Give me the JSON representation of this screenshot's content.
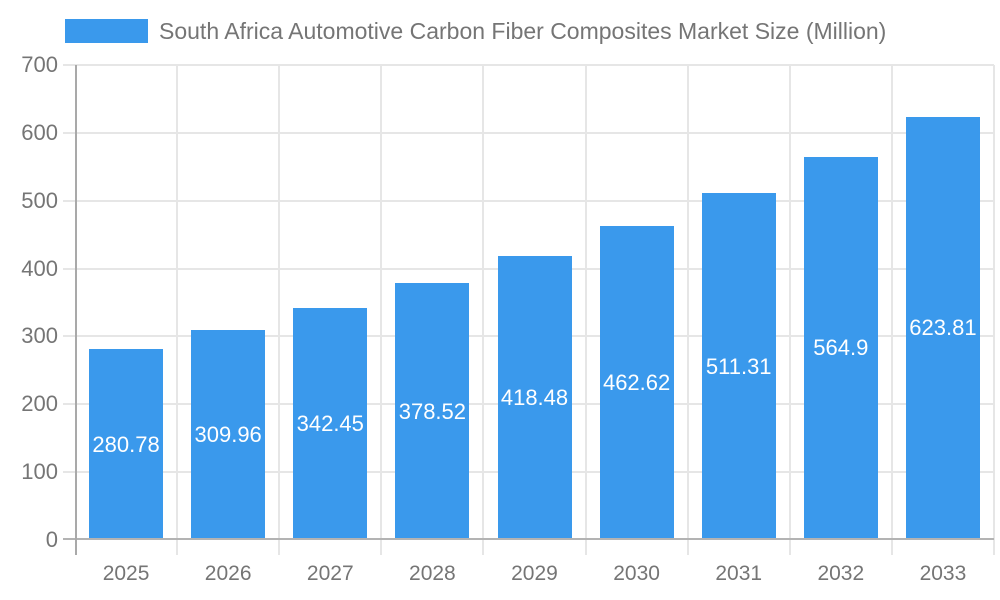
{
  "colors": {
    "bar": "#3A99EC",
    "grid": "#e6e6e6",
    "x_axis": "#b3b3b3",
    "y_axis": "#a9a9a9",
    "text": "#757575",
    "bar_label": "#ffffff",
    "background": "#ffffff"
  },
  "legend": {
    "label": "South Africa Automotive Carbon Fiber Composites Market Size (Million)"
  },
  "chart_data": {
    "type": "bar",
    "title": "South Africa Automotive Carbon Fiber Composites Market Size (Million)",
    "categories": [
      "2025",
      "2026",
      "2027",
      "2028",
      "2029",
      "2030",
      "2031",
      "2032",
      "2033"
    ],
    "values": [
      280.78,
      309.96,
      342.45,
      378.52,
      418.48,
      462.62,
      511.31,
      564.9,
      623.81
    ],
    "value_labels": [
      "280.78",
      "309.96",
      "342.45",
      "378.52",
      "418.48",
      "462.62",
      "511.31",
      "564.9",
      "623.81"
    ],
    "xlabel": "",
    "ylabel": "",
    "ylim": [
      0,
      700
    ],
    "yticks": [
      0,
      100,
      200,
      300,
      400,
      500,
      600,
      700
    ],
    "grid": true,
    "legend_position": "top",
    "value_labels_position": "inside-center"
  }
}
